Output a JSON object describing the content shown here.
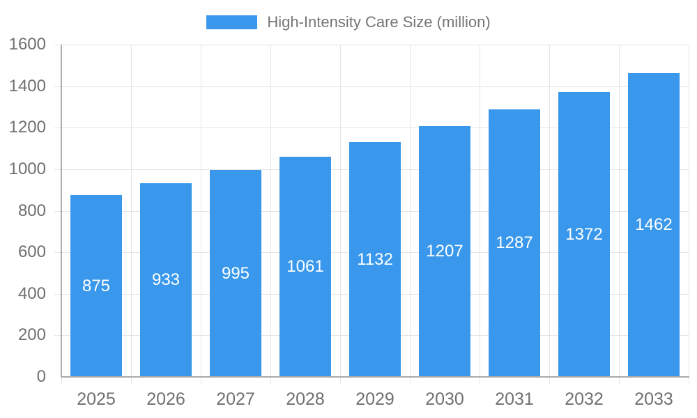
{
  "chart_data": {
    "type": "bar",
    "title": "",
    "legend": [
      "High-Intensity Care Size (million)"
    ],
    "legend_position": "top",
    "categories": [
      "2025",
      "2026",
      "2027",
      "2028",
      "2029",
      "2030",
      "2031",
      "2032",
      "2033"
    ],
    "values": [
      875,
      933,
      995,
      1061,
      1132,
      1207,
      1287,
      1372,
      1462
    ],
    "xlabel": "",
    "ylabel": "",
    "ylim": [
      0,
      1600
    ],
    "yticks": [
      0,
      200,
      400,
      600,
      800,
      1000,
      1200,
      1400,
      1600
    ],
    "grid": true,
    "bar_color": "#3998EB",
    "bar_label_color": "#FFFFFF",
    "axis_text_color": "#707070",
    "legend_text_color": "#757575",
    "grid_color": "#E5E5E5",
    "axis_line_color": "#ABABAB"
  }
}
